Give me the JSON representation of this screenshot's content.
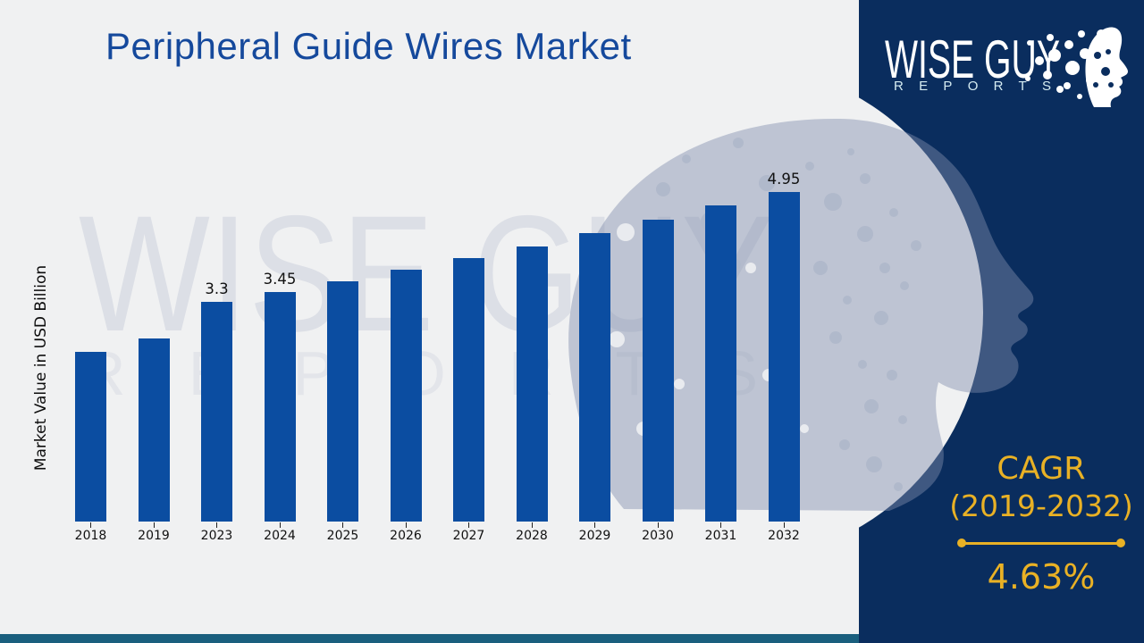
{
  "title": "Peripheral Guide Wires Market",
  "chart_data": {
    "type": "bar",
    "title": "Peripheral Guide Wires Market",
    "xlabel": "",
    "ylabel": "Market Value in USD Billion",
    "categories": [
      "2018",
      "2019",
      "2023",
      "2024",
      "2025",
      "2026",
      "2027",
      "2028",
      "2029",
      "2030",
      "2031",
      "2032"
    ],
    "values": [
      2.55,
      2.75,
      3.3,
      3.45,
      3.61,
      3.78,
      3.95,
      4.13,
      4.33,
      4.53,
      4.74,
      4.95
    ],
    "bar_labels": [
      "",
      "",
      "3.3",
      "3.45",
      "",
      "",
      "",
      "",
      "",
      "",
      "",
      "4.95"
    ],
    "ylim": [
      0,
      5.5
    ],
    "grid": false,
    "legend": null,
    "bar_color": "#0b4da1"
  },
  "watermark": {
    "line1": "WISE GUY",
    "line2": "REPORTS"
  },
  "logo": {
    "name": "WISE GUY",
    "sub": "REPORTS"
  },
  "cagr": {
    "label": "CAGR",
    "range": "(2019-2032)",
    "value": "4.63%"
  },
  "colors": {
    "background": "#f0f1f2",
    "panel_navy": "#0a2d5e",
    "bar_blue": "#0b4da1",
    "title_blue": "#15499c",
    "accent_gold": "#e9b125",
    "teal_strip": "#1a5f7e",
    "watermark_gray": "#dcdfe6"
  }
}
